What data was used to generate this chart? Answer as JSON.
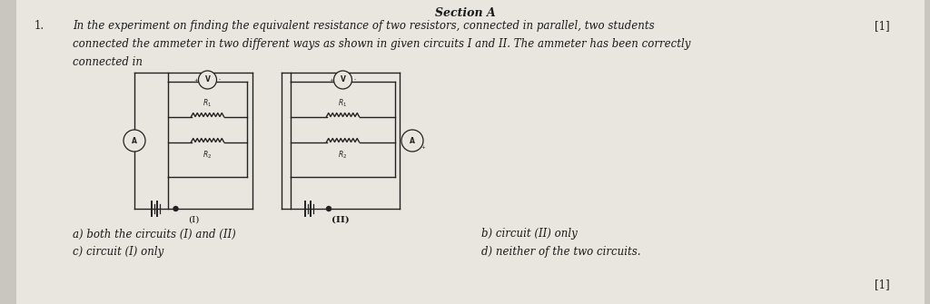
{
  "background_color": "#c8c6be",
  "paper_color": "#e8e6df",
  "title": "Section A",
  "title_fontsize": 9,
  "question_number": "1.",
  "question_text_line1": "In the experiment on finding the equivalent resistance of two resistors, connected in parallel, two students",
  "question_text_line2": "connected the ammeter in two different ways as shown in given circuits I and II. The ammeter has been correctly",
  "question_text_line3": "connected in",
  "mark": "[1]",
  "options": {
    "a": "a) both the circuits (I) and (II)",
    "b": "b) circuit (II) only",
    "c": "c) circuit (I) only",
    "d": "d) neither of the two circuits."
  },
  "font_color": "#1a1a1a",
  "font_size_question": 8.5,
  "font_size_option": 8.5,
  "circuit_label_I": "(I)",
  "circuit_label_II": "(II)",
  "line_color": "#222222",
  "lw": 1.0
}
